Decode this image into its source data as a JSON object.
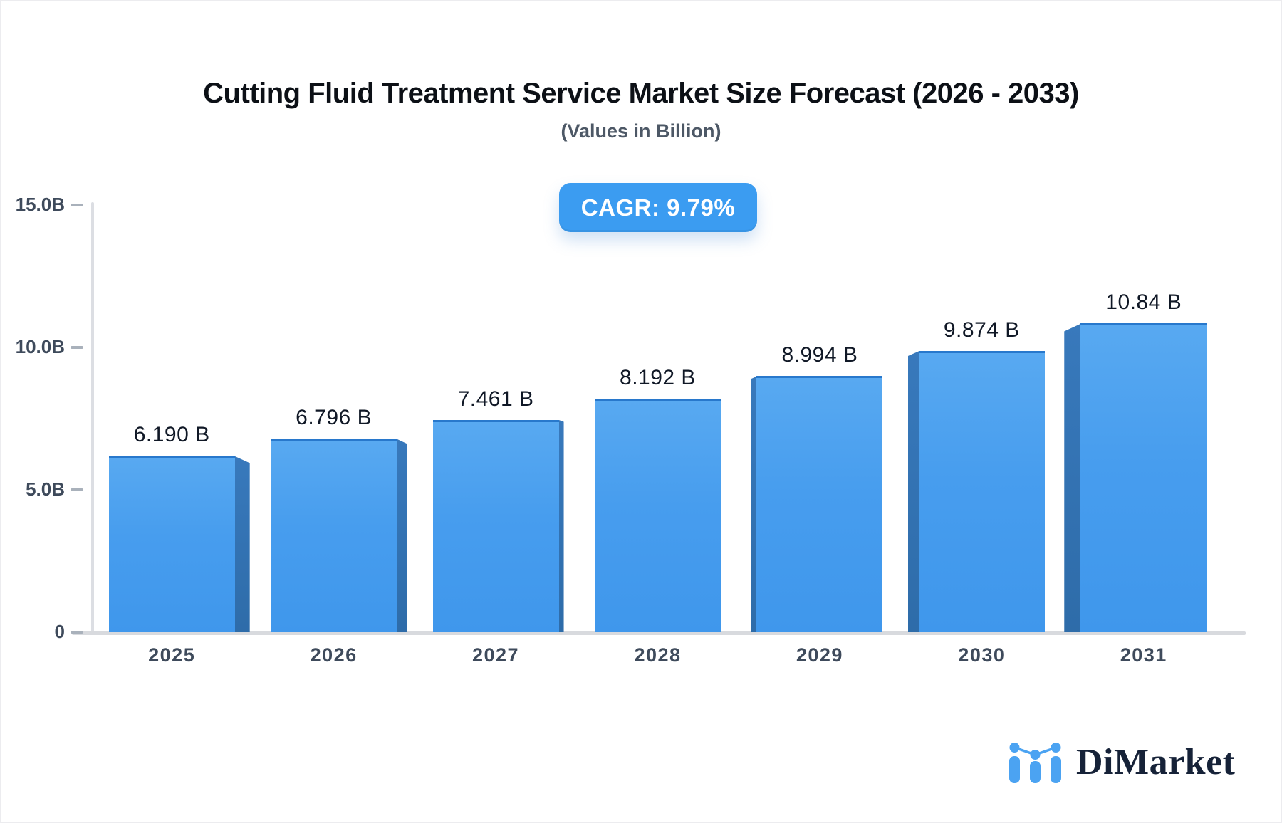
{
  "header": {
    "title": "Cutting Fluid Treatment Service Market Size Forecast (2026 - 2033)",
    "subtitle": "(Values in Billion)"
  },
  "badge": {
    "label": "CAGR: 9.79%"
  },
  "chart_data": {
    "type": "bar",
    "title": "Cutting Fluid Treatment Service Market Size Forecast (2026 - 2033)",
    "subtitle": "(Values in Billion)",
    "cagr": "9.79%",
    "categories": [
      "2025",
      "2026",
      "2027",
      "2028",
      "2029",
      "2030",
      "2031"
    ],
    "values": [
      6.19,
      6.796,
      7.461,
      8.192,
      8.994,
      9.874,
      10.84
    ],
    "bar_labels": [
      "6.190 B",
      "6.796 B",
      "7.461 B",
      "8.192 B",
      "8.994 B",
      "9.874 B",
      "10.84 B"
    ],
    "xlabel": "",
    "ylabel": "",
    "ylim": [
      0,
      15
    ],
    "yticks": [
      {
        "label": "15.0B",
        "value": 15
      },
      {
        "label": "10.0B",
        "value": 10
      },
      {
        "label": "5.0B",
        "value": 5
      },
      {
        "label": "0",
        "value": 0
      }
    ],
    "grid": "off",
    "legend": "none",
    "bar_color": "#479DEE",
    "bar_side_color": "#2E6CA9",
    "bar_top_border_color": "#2878CC",
    "effect": "3d-perspective-center"
  },
  "logo": {
    "brand": "DiMarket",
    "icon": "bar-chart-logo-icon",
    "text_color": "#162238",
    "accent_color": "#4BA3F2"
  }
}
